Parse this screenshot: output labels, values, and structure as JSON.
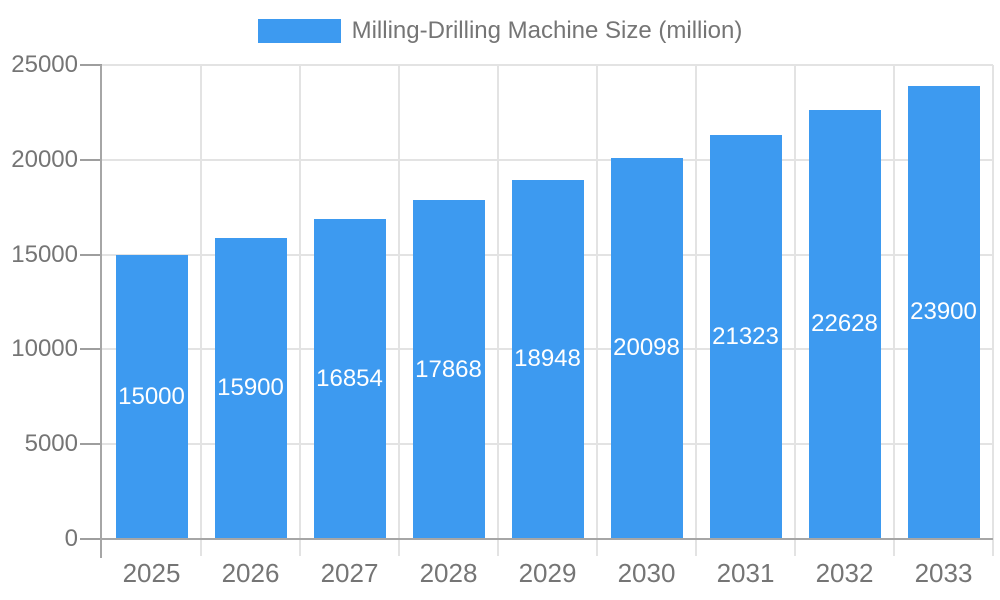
{
  "legend": {
    "label": "Milling-Drilling Machine Size (million)"
  },
  "colors": {
    "bar": "#3d9af0",
    "grid": "#e3e3e3",
    "axis": "#a6a6a6",
    "tick": "#9e9e9e",
    "label_text": "#757575",
    "value_text": "#ffffff",
    "background": "#ffffff"
  },
  "chart_data": {
    "type": "bar",
    "title": "Milling-Drilling Machine Size (million)",
    "categories": [
      "2025",
      "2026",
      "2027",
      "2028",
      "2029",
      "2030",
      "2031",
      "2032",
      "2033"
    ],
    "values": [
      15000,
      15900,
      16854,
      17868,
      18948,
      20098,
      21323,
      22628,
      23900
    ],
    "xlabel": "",
    "ylabel": "",
    "ylim": [
      0,
      25000
    ],
    "yticks": [
      0,
      5000,
      10000,
      15000,
      20000,
      25000
    ],
    "grid": true,
    "legend_position": "top",
    "value_label_position": "center-inside-bar",
    "bar_color": "#3d9af0"
  }
}
